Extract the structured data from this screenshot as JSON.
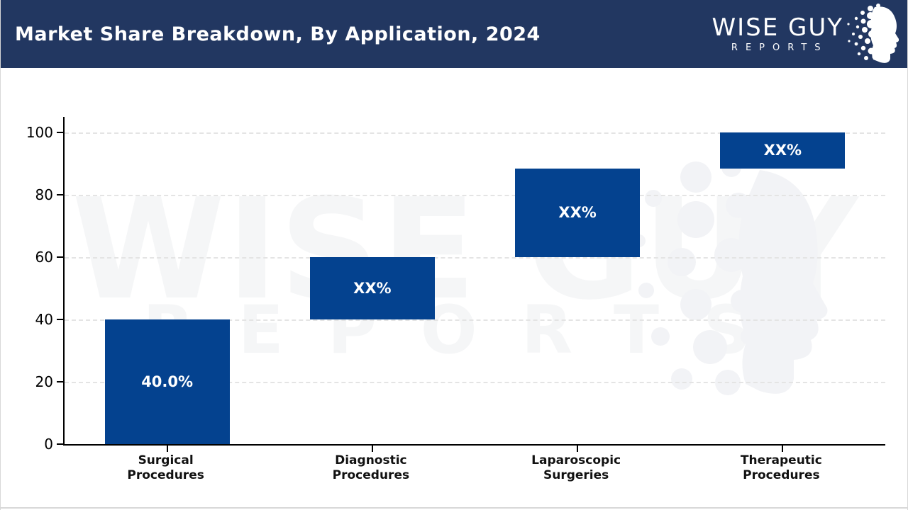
{
  "header": {
    "title": "Market Share Breakdown, By Application, 2024",
    "logo": {
      "line1": "WISE GUY",
      "line2": "REPORTS"
    }
  },
  "watermark": {
    "line1": "WISE GUY",
    "line2": "REPORTS"
  },
  "colors": {
    "header_bg": "#223761",
    "bar": "#04428f",
    "bar_label": "#ffffff",
    "gridline": "#e4e4e4",
    "axis": "#000000",
    "watermark": "#f2f3f6"
  },
  "chart_data": {
    "type": "bar",
    "subtype": "waterfall",
    "title": "Market Share Breakdown, By Application, 2024",
    "xlabel": "",
    "ylabel": "",
    "grid": true,
    "ylim": [
      0,
      105
    ],
    "yticks": [
      0,
      20,
      40,
      60,
      80,
      100
    ],
    "categories": [
      {
        "line1": "Surgical",
        "line2": "Procedures"
      },
      {
        "line1": "Diagnostic",
        "line2": "Procedures"
      },
      {
        "line1": "Laparoscopic",
        "line2": "Surgeries"
      },
      {
        "line1": "Therapeutic",
        "line2": "Procedures"
      }
    ],
    "segments": [
      {
        "category": "Surgical Procedures",
        "label": "40.0%",
        "start": 0,
        "end": 40
      },
      {
        "category": "Diagnostic Procedures",
        "label": "XX%",
        "start": 40,
        "end": 60
      },
      {
        "category": "Laparoscopic Surgeries",
        "label": "XX%",
        "start": 60,
        "end": 88.5
      },
      {
        "category": "Therapeutic Procedures",
        "label": "XX%",
        "start": 88.5,
        "end": 100
      }
    ]
  }
}
